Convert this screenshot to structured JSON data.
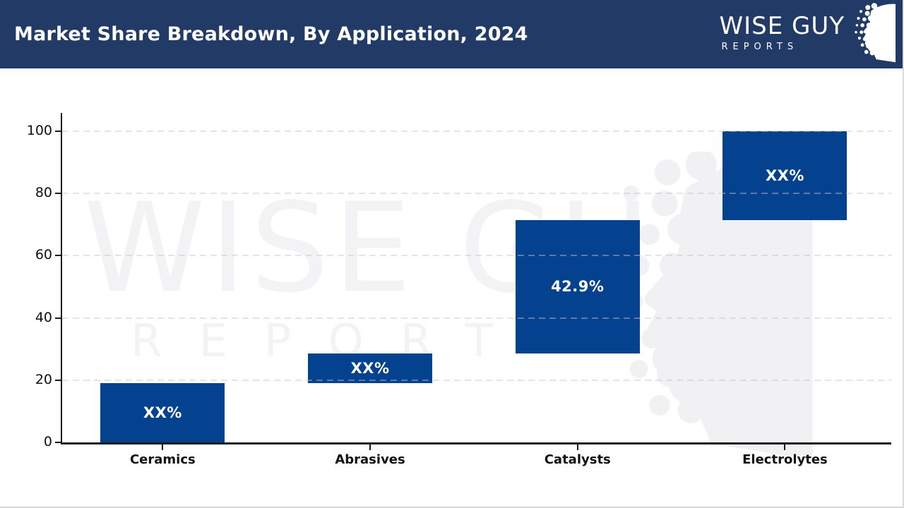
{
  "header": {
    "title": "Market Share Breakdown, By Application, 2024",
    "logo": {
      "line1": "WISE GUY",
      "line2": "REPORTS"
    }
  },
  "watermark": {
    "line1": "WISE GU",
    "line2": "REPORT"
  },
  "colors": {
    "header_bg": "#213a66",
    "bar": "#04428f",
    "axis": "#1a1a1a",
    "grid": "#c3c3c3",
    "watermark": "#f3f3f5",
    "bar_label": "#ffffff"
  },
  "chart_data": {
    "type": "bar",
    "subtype": "waterfall",
    "title": "Market Share Breakdown, By Application, 2024",
    "categories": [
      "Ceramics",
      "Abrasives",
      "Catalysts",
      "Electrolytes"
    ],
    "segments": [
      {
        "category": "Ceramics",
        "start": 0,
        "end": 19,
        "value": 19.0,
        "label": "XX%"
      },
      {
        "category": "Abrasives",
        "start": 19,
        "end": 28.6,
        "value": 9.6,
        "label": "XX%"
      },
      {
        "category": "Catalysts",
        "start": 28.6,
        "end": 71.5,
        "value": 42.9,
        "label": "42.9%"
      },
      {
        "category": "Electrolytes",
        "start": 71.5,
        "end": 100,
        "value": 28.5,
        "label": "XX%"
      }
    ],
    "y_ticks": [
      0,
      20,
      40,
      60,
      80,
      100
    ],
    "ylim": [
      0,
      106
    ],
    "xlabel": "",
    "ylabel": "",
    "grid": "horizontal-dashed",
    "legend": "none"
  }
}
